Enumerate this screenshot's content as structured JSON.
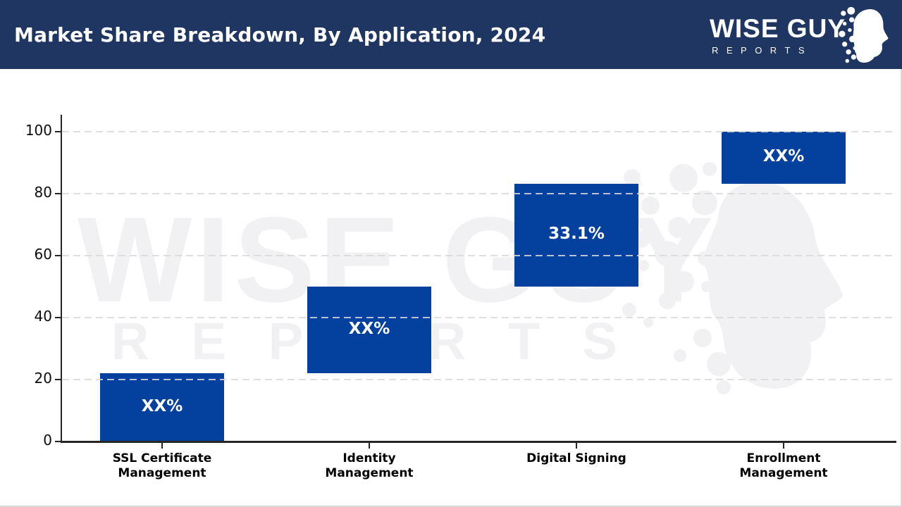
{
  "header": {
    "title": "Market Share Breakdown, By Application, 2024",
    "logo": {
      "wordmark": "WISE GUY",
      "sub": "REPORTS"
    }
  },
  "watermark": {
    "wordmark": "WISE GUY",
    "sub": "REPORTS"
  },
  "chart_data": {
    "type": "bar",
    "subtype": "floating-segments-waterfall",
    "title": "Market Share Breakdown, By Application, 2024",
    "xlabel": "",
    "ylabel": "",
    "ylim": [
      0,
      100
    ],
    "yticks": [
      0,
      20,
      40,
      60,
      80,
      100
    ],
    "grid": "horizontal-dashed",
    "legend": "none",
    "categories": [
      "SSL Certificate Management",
      "Identity Management",
      "Digital Signing",
      "Enrollment Management"
    ],
    "category_lines": [
      [
        "SSL Certificate",
        "Management"
      ],
      [
        "Identity",
        "Management"
      ],
      [
        "Digital Signing"
      ],
      [
        "Enrollment",
        "Management"
      ]
    ],
    "series": [
      {
        "name": "Market Share",
        "segments": [
          {
            "category": "SSL Certificate Management",
            "start": 0,
            "end": 22,
            "label": "XX%"
          },
          {
            "category": "Identity Management",
            "start": 22,
            "end": 50,
            "label": "XX%"
          },
          {
            "category": "Digital Signing",
            "start": 50,
            "end": 83.1,
            "label": "33.1%"
          },
          {
            "category": "Enrollment Management",
            "start": 83.1,
            "end": 100,
            "label": "XX%"
          }
        ]
      }
    ],
    "bar_color": "#04419e",
    "bar_label_color": "#ffffff"
  },
  "colors": {
    "header_bg": "#1f3562",
    "header_text": "#ffffff",
    "bar": "#04419e",
    "grid": "#d9d9d9",
    "axis": "#262626",
    "tick_label": "#0d0d0d",
    "watermark": "#f1f1f3",
    "page_bg": "#ffffff"
  }
}
